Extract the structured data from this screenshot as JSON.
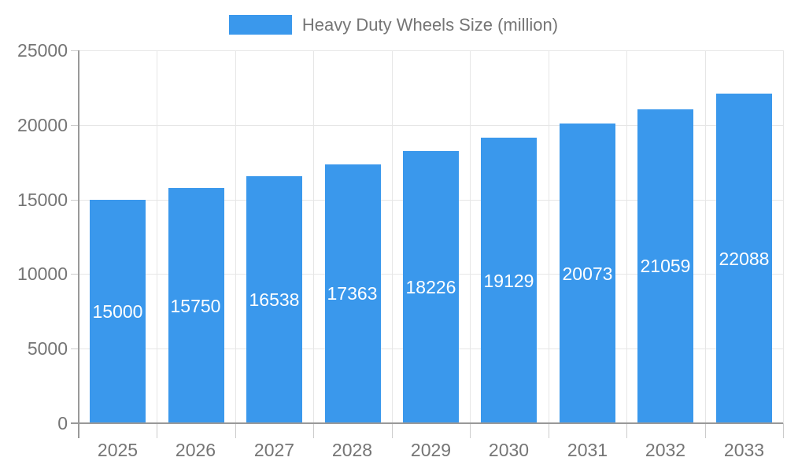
{
  "legend": {
    "label": "Heavy Duty Wheels Size (million)"
  },
  "colors": {
    "bar": "#3A98EC",
    "axis": "#999999",
    "grid": "#E6E6E6",
    "tick": "#CCCCCC",
    "text": "#757575",
    "bar_label": "#FFFFFF",
    "background": "#FFFFFF"
  },
  "chart_data": {
    "type": "bar",
    "title": "Heavy Duty Wheels Size (million)",
    "categories": [
      "2025",
      "2026",
      "2027",
      "2028",
      "2029",
      "2030",
      "2031",
      "2032",
      "2033"
    ],
    "series": [
      {
        "name": "Heavy Duty Wheels Size (million)",
        "values": [
          15000,
          15750,
          16538,
          17363,
          18226,
          19129,
          20073,
          21059,
          22088
        ]
      }
    ],
    "bar_value_labels": [
      "15000",
      "15750",
      "16538",
      "17363",
      "18226",
      "19129",
      "20073",
      "21059",
      "22088"
    ],
    "xlabel": "",
    "ylabel": "",
    "ylim": [
      0,
      25000
    ],
    "yticks": [
      0,
      5000,
      10000,
      15000,
      20000,
      25000
    ],
    "ytick_labels": [
      "0",
      "5000",
      "10000",
      "15000",
      "20000",
      "25000"
    ],
    "grid": true,
    "legend_position": "top",
    "value_label_position": "inside-center"
  }
}
